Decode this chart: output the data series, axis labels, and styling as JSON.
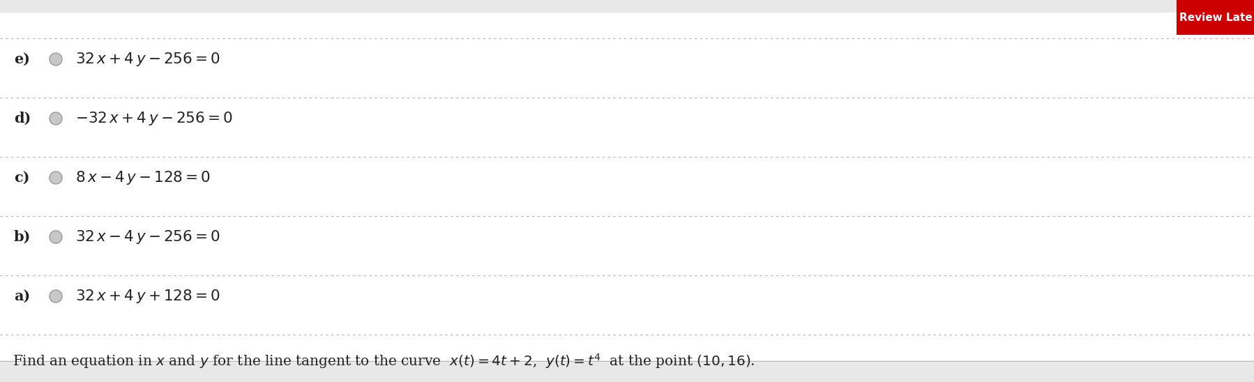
{
  "background_color": "#e8e8e8",
  "main_bg": "#ffffff",
  "header_bg": "#e8e8e8",
  "title_text": "Find an equation in $x$ and $y$ for the line tangent to the curve  $x(t) = 4t + 2$,  $y(t) = t^4$  at the point $(10, 16)$.",
  "title_fontsize": 14.5,
  "options": [
    {
      "label": "a)",
      "expr": "$32\\,x + 4\\,y + 128 = 0$"
    },
    {
      "label": "b)",
      "expr": "$32\\,x - 4\\,y - 256 = 0$"
    },
    {
      "label": "c)",
      "expr": "$8\\,x - 4\\,y - 128 = 0$"
    },
    {
      "label": "d)",
      "expr": "$-32\\,x + 4\\,y - 256 = 0$"
    },
    {
      "label": "e)",
      "expr": "$32\\,x + 4\\,y - 256 = 0$"
    }
  ],
  "option_fontsize": 15.5,
  "label_fontsize": 15.0,
  "divider_color": "#b0b0b0",
  "circle_fill_color": "#c8c8c8",
  "circle_edge_color": "#999999",
  "text_color": "#222222",
  "review_button_text": "Review Late",
  "review_button_color": "#cc0000",
  "review_button_text_color": "#ffffff",
  "review_button_fontsize": 11
}
